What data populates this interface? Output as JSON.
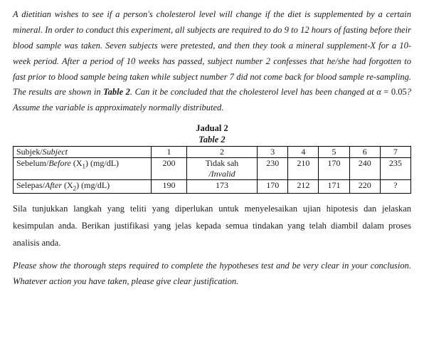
{
  "intro": {
    "text_pre_alpha": "A dietitian wishes to see if a person's cholesterol level will change if the diet is supplemented by a certain mineral. In order to conduct this experiment, all subjects are required to do 9 to 12 hours of fasting before their blood sample was taken. Seven subjects were pretested, and then they took a mineral supplement-X for a 10-week period. After a period of 10 weeks has passed, subject number 2 confesses that he/she had forgotten to fast prior to blood sample being taken while subject number 7 did not come back for blood sample re-sampling. The results are shown in Table 2. Can it be concluded that the cholesterol level has been changed at ",
    "alpha_lhs": "α",
    "alpha_eq": " = ",
    "alpha_val": "0.05",
    "text_post_alpha": "? Assume the variable is approximately normally distributed."
  },
  "table": {
    "caption_top": "Jadual 2",
    "caption_sub": "Table 2",
    "row_labels": {
      "subject": "Subjek/Subject",
      "before": "Sebelum/Before (X₁) (mg/dL)",
      "after": "Selepas/After (X₂) (mg/dL)"
    },
    "invalid_label_top": "Tidak sah",
    "invalid_label_bottom": "/Invalid",
    "subjects": [
      "1",
      "2",
      "3",
      "4",
      "5",
      "6",
      "7"
    ],
    "before": [
      "200",
      "",
      "230",
      "210",
      "170",
      "240",
      "235"
    ],
    "after": [
      "190",
      "173",
      "170",
      "212",
      "171",
      "220",
      "?"
    ]
  },
  "para_ms": "Sila tunjukkan langkah yang teliti yang diperlukan untuk menyelesaikan ujian hipotesis dan jelaskan kesimpulan anda. Berikan justifikasi yang jelas kepada semua tindakan yang telah diambil dalam proses analisis anda.",
  "para_en": "Please show the thorough steps required to complete the hypotheses test and be very clear in your conclusion. Whatever action you have taken, please give clear justification.",
  "style": {
    "text_color": "#1a1a1a",
    "background": "#ffffff",
    "border_color": "#000000"
  }
}
